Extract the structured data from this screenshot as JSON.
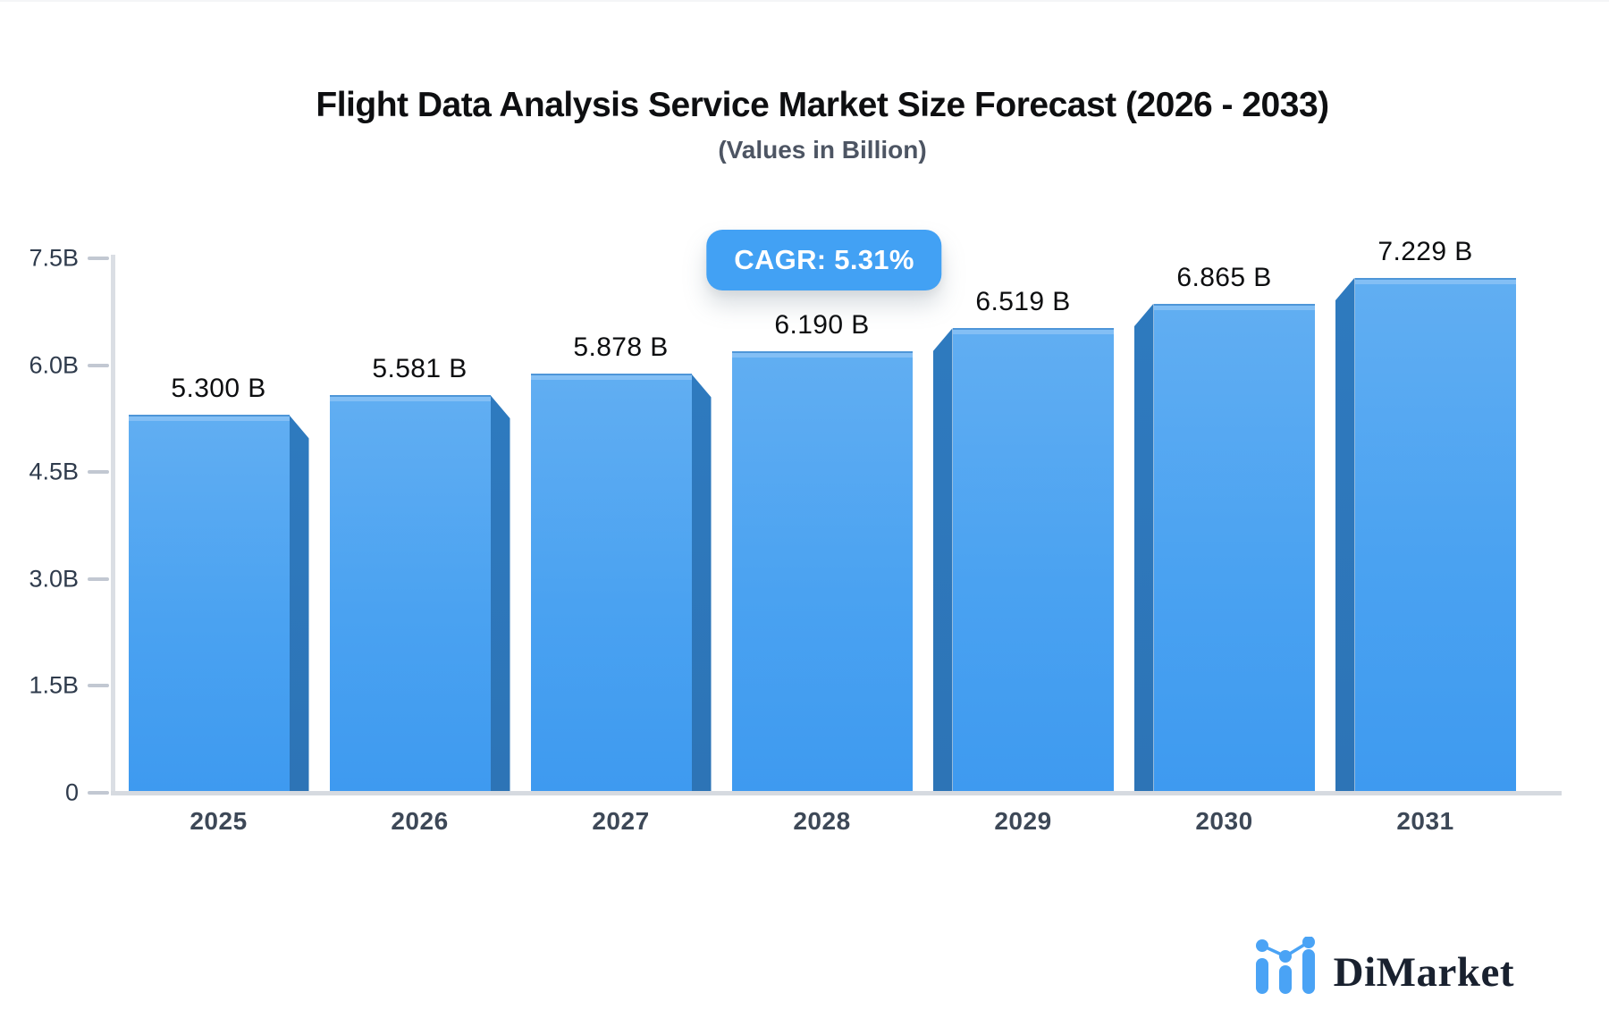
{
  "header": {
    "title": "Flight Data Analysis Service Market Size Forecast (2026 - 2033)",
    "subtitle": "(Values in Billion)"
  },
  "badge": {
    "label": "CAGR: 5.31%"
  },
  "chart_data": {
    "type": "bar",
    "title": "Flight Data Analysis Service Market Size Forecast (2026 - 2033)",
    "subtitle": "(Values in Billion)",
    "cagr_annotation": "CAGR: 5.31%",
    "categories": [
      "2025",
      "2026",
      "2027",
      "2028",
      "2029",
      "2030",
      "2031"
    ],
    "values": [
      5.3,
      5.581,
      5.878,
      6.19,
      6.519,
      6.865,
      7.229
    ],
    "bar_labels": [
      "5.300 B",
      "5.581 B",
      "5.878 B",
      "6.190 B",
      "6.519 B",
      "6.865 B",
      "7.229 B"
    ],
    "xlabel": "",
    "ylabel": "",
    "ylim": [
      0,
      7.5
    ],
    "yticks": [
      {
        "value": 7.5,
        "label": "7.5B"
      },
      {
        "value": 6.0,
        "label": "6.0B"
      },
      {
        "value": 4.5,
        "label": "4.5B"
      },
      {
        "value": 3.0,
        "label": "3.0B"
      },
      {
        "value": 1.5,
        "label": "1.5B"
      },
      {
        "value": 0,
        "label": "0"
      }
    ],
    "grid": false,
    "legend": "none",
    "colors": {
      "bar_body": "#4aa2f1",
      "bar_side_3d": "#2d77bd",
      "badge_bg": "#42a1f4",
      "badge_text": "#ffffff",
      "axis_line": "#d6dae0",
      "tick_text": "#2f3b4c"
    }
  },
  "logo": {
    "text": "DiMarket",
    "accent": "#4aa3f5"
  }
}
